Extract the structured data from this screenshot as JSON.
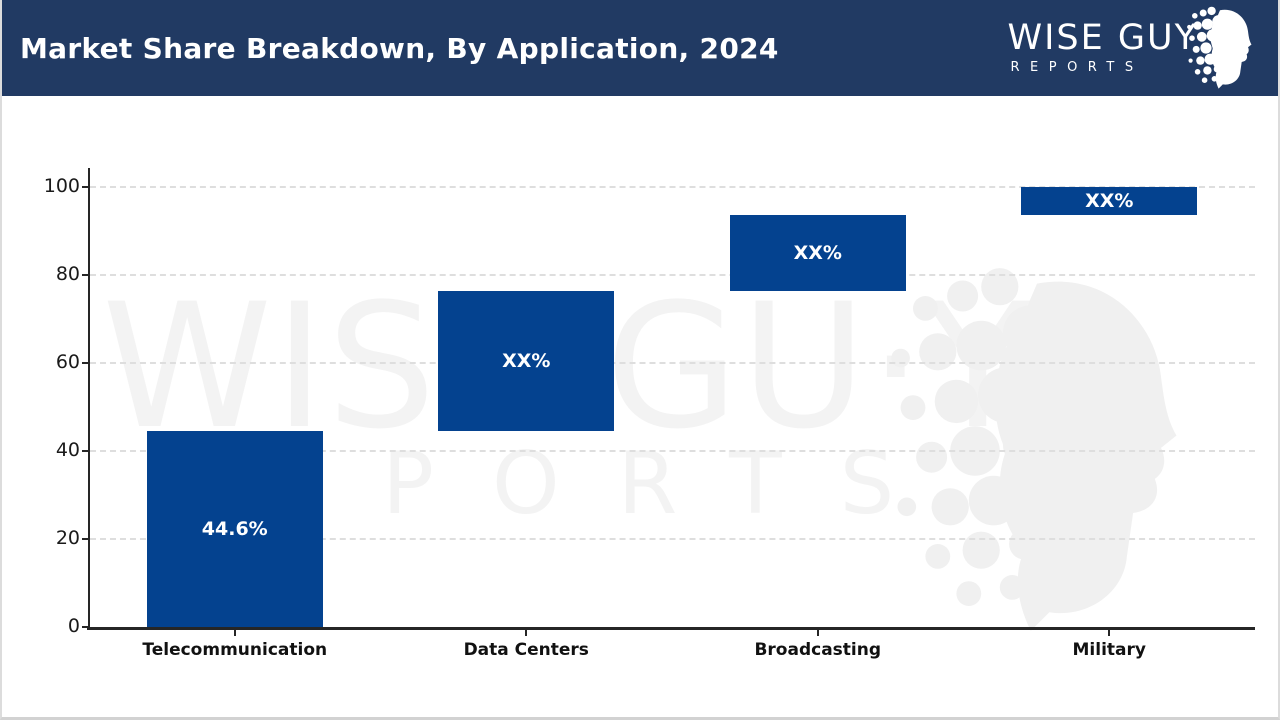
{
  "header": {
    "title": "Market Share Breakdown, By Application, 2024",
    "bg_color": "#213a63",
    "logo": {
      "wordmark": "WISE GUY",
      "subtext": "REPORTS"
    }
  },
  "watermark": {
    "line1": "WISE GU·Y",
    "line2": "REPORTS"
  },
  "chart_data": {
    "type": "bar",
    "subtype": "waterfall",
    "title": "Market Share Breakdown, By Application, 2024",
    "categories": [
      "Telecommunication",
      "Data Centers",
      "Broadcasting",
      "Military"
    ],
    "segments": [
      {
        "category": "Telecommunication",
        "start": 0,
        "end": 44.6,
        "label": "44.6%"
      },
      {
        "category": "Data Centers",
        "start": 44.6,
        "end": 76.3,
        "label": "XX%"
      },
      {
        "category": "Broadcasting",
        "start": 76.3,
        "end": 93.6,
        "label": "XX%"
      },
      {
        "category": "Military",
        "start": 93.6,
        "end": 100,
        "label": "XX%"
      }
    ],
    "y_ticks": [
      0,
      20,
      40,
      60,
      80,
      100
    ],
    "ylim": [
      0,
      104
    ],
    "grid": {
      "horizontal": true,
      "style": "dashed",
      "color": "#dedede"
    },
    "bar_color": "#04428f",
    "bar_label_color": "#ffffff",
    "axis_color": "#262626",
    "tick_label_color": "#1a1a1a",
    "legend": "none"
  }
}
